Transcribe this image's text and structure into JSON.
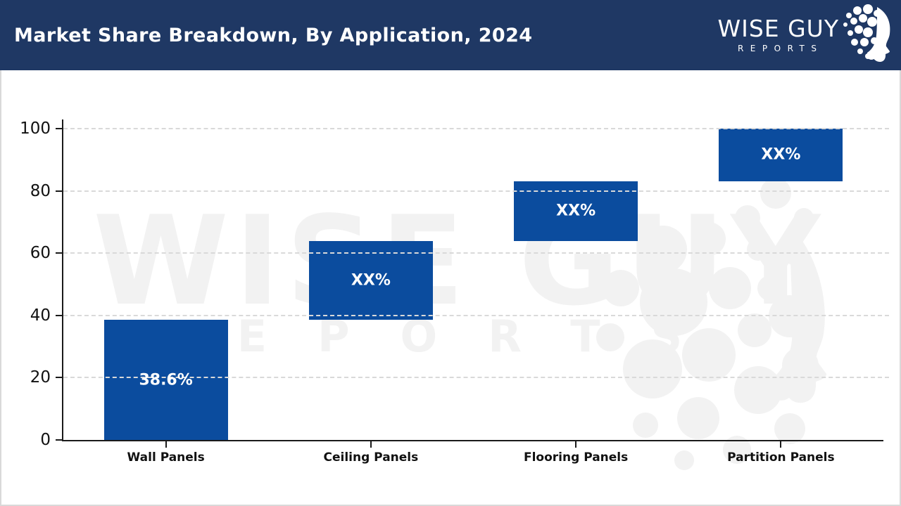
{
  "header": {
    "title": "Market Share Breakdown, By Application, 2024",
    "logo": {
      "line1": "WISE GUY",
      "line2": "REPORTS"
    }
  },
  "watermark": {
    "line1": "WISE GUY",
    "line2": "REPORTS"
  },
  "colors": {
    "header_bg": "#1f3864",
    "bar": "#0b4c9e",
    "grid": "#d9d9d9",
    "axis": "#1a1a1a",
    "watermark": "#f2f2f2",
    "title_text": "#ffffff",
    "bar_label_text": "#ffffff"
  },
  "chart_data": {
    "type": "bar",
    "subtype": "floating-segment (waterfall style, no connectors)",
    "title": "Market Share Breakdown, By Application, 2024",
    "xlabel": "",
    "ylabel": "",
    "categories": [
      "Wall Panels",
      "Ceiling Panels",
      "Flooring Panels",
      "Partition Panels"
    ],
    "bars": [
      {
        "category": "Wall Panels",
        "start": 0,
        "end": 38.6,
        "value": 38.6,
        "label": "38.6%"
      },
      {
        "category": "Ceiling Panels",
        "start": 38.6,
        "end": 64.0,
        "value": 25.4,
        "label": "XX%"
      },
      {
        "category": "Flooring Panels",
        "start": 64.0,
        "end": 83.2,
        "value": 19.2,
        "label": "XX%"
      },
      {
        "category": "Partition Panels",
        "start": 83.2,
        "end": 100.0,
        "value": 16.8,
        "label": "XX%"
      }
    ],
    "yticks": [
      0,
      20,
      40,
      60,
      80,
      100
    ],
    "ylim": [
      0,
      103
    ],
    "grid": "horizontal dashed, drawn above bars",
    "legend": "none"
  }
}
